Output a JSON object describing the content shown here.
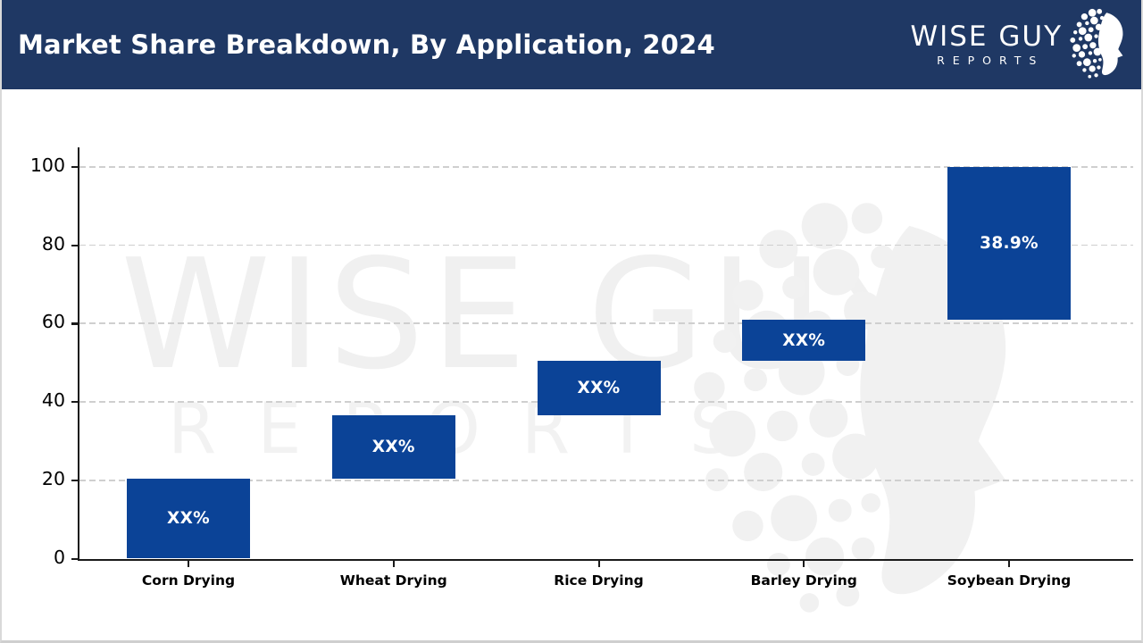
{
  "header": {
    "title": "Market Share Breakdown, By Application, 2024",
    "logo": {
      "line1": "WISE GUY",
      "line2": "REPORTS"
    }
  },
  "watermark": {
    "line1": "WISE GUY",
    "line2": "REPORTS"
  },
  "colors": {
    "header_bg": "#1f3864",
    "bar": "#0b4397",
    "grid": "#cfcfcf",
    "axis": "#1a1a1a",
    "tick_text": "#000000",
    "bar_label_text": "#ffffff",
    "watermark": "#f1f1f1"
  },
  "chart_data": {
    "type": "bar",
    "subtype": "waterfall",
    "title": "Market Share Breakdown, By Application, 2024",
    "categories": [
      "Corn Drying",
      "Wheat Drying",
      "Rice Drying",
      "Barley Drying",
      "Soybean Drying"
    ],
    "segments": [
      {
        "category": "Corn Drying",
        "start": 0,
        "end": 20.3,
        "value": 20.3,
        "label": "XX%"
      },
      {
        "category": "Wheat Drying",
        "start": 20.3,
        "end": 36.5,
        "value": 16.2,
        "label": "XX%"
      },
      {
        "category": "Rice Drying",
        "start": 36.5,
        "end": 50.4,
        "value": 13.9,
        "label": "XX%"
      },
      {
        "category": "Barley Drying",
        "start": 50.4,
        "end": 61.1,
        "value": 10.7,
        "label": "XX%"
      },
      {
        "category": "Soybean Drying",
        "start": 61.1,
        "end": 100,
        "value": 38.9,
        "label": "38.9%"
      }
    ],
    "yticks": [
      0,
      20,
      40,
      60,
      80,
      100
    ],
    "ylim": [
      0,
      105
    ],
    "xlabel": "",
    "ylabel": "",
    "grid": "horizontal-dashed",
    "legend": "none"
  }
}
